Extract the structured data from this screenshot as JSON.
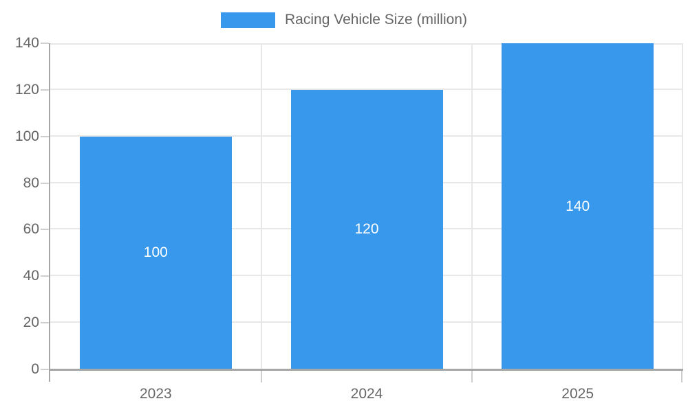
{
  "legend": {
    "label": "Racing Vehicle Size (million)"
  },
  "colors": {
    "bar": "#3899EC",
    "bar_label": "#FFFFFF",
    "axis_text": "#666666",
    "grid_line": "#E7E7E7",
    "axis_line": "#A6A6A6",
    "tick_mark": "#CFCFCF",
    "background": "#FFFFFF"
  },
  "chart_data": {
    "type": "bar",
    "title": "Racing Vehicle Size (million)",
    "series_name": "Racing Vehicle Size (million)",
    "categories": [
      "2023",
      "2024",
      "2025"
    ],
    "values": [
      100,
      120,
      140
    ],
    "data_labels": [
      "100",
      "120",
      "140"
    ],
    "xlabel": "",
    "ylabel": "",
    "ylim": [
      0,
      140
    ],
    "yticks": [
      0,
      20,
      40,
      60,
      80,
      100,
      120,
      140
    ],
    "grid": true,
    "legend_position": "top"
  }
}
